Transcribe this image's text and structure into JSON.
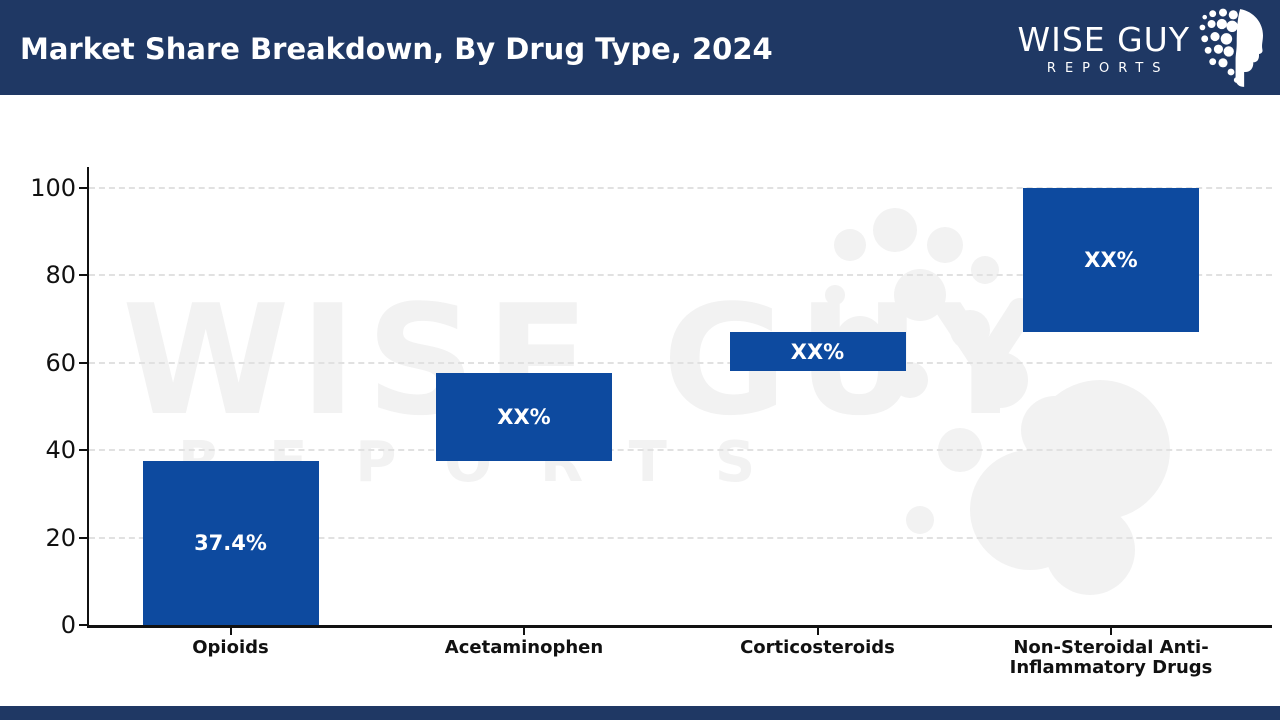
{
  "header": {
    "title": "Market Share Breakdown, By Drug Type, 2024",
    "bg_color": "#1f3864",
    "logo_line1": "WISE GUY",
    "logo_line2": "REPORTS"
  },
  "watermark": {
    "line1": "WISE GUY",
    "line2": "REPORTS"
  },
  "chart_data": {
    "type": "bar",
    "subtype": "waterfall",
    "title": "Market Share Breakdown, By Drug Type, 2024",
    "categories": [
      "Opioids",
      "Acetaminophen",
      "Corticosteroids",
      "Non-Steroidal Anti-Inflammatory Drugs"
    ],
    "series": [
      {
        "name": "Market Share",
        "segments": [
          {
            "category": "Opioids",
            "start": 0,
            "end": 37.4,
            "label": "37.4%"
          },
          {
            "category": "Acetaminophen",
            "start": 37.4,
            "end": 57.6,
            "label": "XX%"
          },
          {
            "category": "Corticosteroids",
            "start": 58,
            "end": 67,
            "label": "XX%"
          },
          {
            "category": "Non-Steroidal Anti-Inflammatory Drugs",
            "start": 67,
            "end": 100,
            "label": "XX%"
          }
        ]
      }
    ],
    "xlabel": "",
    "ylabel": "",
    "ylim": [
      0,
      100
    ],
    "yticks": [
      0,
      20,
      40,
      60,
      80,
      100
    ],
    "grid": "horizontal-dashed",
    "legend": "none",
    "bar_color": "#0d4a9f",
    "bar_label_color": "#ffffff",
    "axis_color": "#111111"
  }
}
